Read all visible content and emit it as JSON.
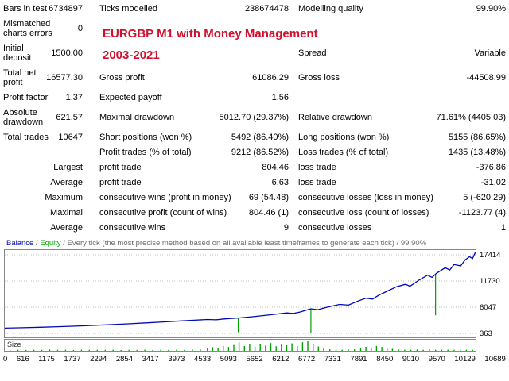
{
  "title": {
    "line1": "EURGBP M1 with Money Management",
    "line2": "2003-2021",
    "color": "#d1102e"
  },
  "stats": {
    "rows": [
      {
        "l1": "Bars in test",
        "v1": "6734897",
        "l2": "Ticks modelled",
        "v2": "238674478",
        "l3": "Modelling quality",
        "v3": "99.90%"
      },
      {
        "l1": "Mismatched charts errors",
        "v1": "0",
        "l2": "",
        "v2": "",
        "l3": "",
        "v3": ""
      },
      {
        "l1": "Initial deposit",
        "v1": "1500.00",
        "l2": "",
        "v2": "",
        "l3": "Spread",
        "v3": "Variable"
      },
      {
        "l1": "Total net profit",
        "v1": "16577.30",
        "l2": "Gross profit",
        "v2": "61086.29",
        "l3": "Gross loss",
        "v3": "-44508.99"
      },
      {
        "l1": "Profit factor",
        "v1": "1.37",
        "l2": "Expected payoff",
        "v2": "1.56",
        "l3": "",
        "v3": ""
      },
      {
        "l1": "Absolute drawdown",
        "v1": "621.57",
        "l2": "Maximal drawdown",
        "v2": "5012.70 (29.37%)",
        "l3": "Relative drawdown",
        "v3": "71.61% (4405.03)"
      },
      {
        "l1": "Total trades",
        "v1": "10647",
        "l2": "Short positions (won %)",
        "v2": "5492 (86.40%)",
        "l3": "Long positions (won %)",
        "v3": "5155 (86.65%)"
      },
      {
        "l1": "",
        "v1": "",
        "l2": "Profit trades (% of total)",
        "v2": "9212 (86.52%)",
        "l3": "Loss trades (% of total)",
        "v3": "1435 (13.48%)"
      },
      {
        "l1": "",
        "v1": "Largest",
        "l2": "profit trade",
        "v2": "804.46",
        "l3": "loss trade",
        "v3": "-376.86"
      },
      {
        "l1": "",
        "v1": "Average",
        "l2": "profit trade",
        "v2": "6.63",
        "l3": "loss trade",
        "v3": "-31.02"
      },
      {
        "l1": "",
        "v1": "Maximum",
        "l2": "consecutive wins (profit in money)",
        "v2": "69 (54.48)",
        "l3": "consecutive losses (loss in money)",
        "v3": "5 (-620.29)"
      },
      {
        "l1": "",
        "v1": "Maximal",
        "l2": "consecutive profit (count of wins)",
        "v2": "804.46 (1)",
        "l3": "consecutive loss (count of losses)",
        "v3": "-1123.77 (4)"
      },
      {
        "l1": "",
        "v1": "Average",
        "l2": "consecutive wins",
        "v2": "9",
        "l3": "consecutive losses",
        "v3": "1"
      }
    ]
  },
  "chart_data": {
    "type": "line",
    "title": "",
    "legend": {
      "balance_label": "Balance",
      "equity_label": "Equity",
      "separator": " / ",
      "description": "Every tick (the most precise method based on all available least timeframes to generate each tick) / 99.90%"
    },
    "xlim": [
      0,
      10689
    ],
    "ylim": [
      363,
      17414
    ],
    "x_ticks": [
      0,
      616,
      1175,
      1737,
      2294,
      2854,
      3417,
      3973,
      4533,
      5093,
      5652,
      6212,
      6772,
      7331,
      7891,
      8450,
      9010,
      9570,
      10129,
      10689
    ],
    "y_ticks": [
      17414,
      11730,
      6047,
      363
    ],
    "grid": "horizontal-dotted",
    "series": [
      {
        "name": "Balance",
        "color": "#0008b8",
        "points": [
          [
            0,
            1500
          ],
          [
            400,
            1590
          ],
          [
            800,
            1690
          ],
          [
            1200,
            1810
          ],
          [
            1600,
            1930
          ],
          [
            2000,
            2080
          ],
          [
            2400,
            2250
          ],
          [
            2800,
            2430
          ],
          [
            3200,
            2630
          ],
          [
            3600,
            2850
          ],
          [
            4000,
            3060
          ],
          [
            4300,
            3230
          ],
          [
            4600,
            3380
          ],
          [
            4800,
            3300
          ],
          [
            5000,
            3520
          ],
          [
            5300,
            3700
          ],
          [
            5600,
            3960
          ],
          [
            5900,
            4260
          ],
          [
            6200,
            4580
          ],
          [
            6400,
            4800
          ],
          [
            6550,
            4680
          ],
          [
            6700,
            5000
          ],
          [
            6950,
            5700
          ],
          [
            7100,
            5500
          ],
          [
            7300,
            6000
          ],
          [
            7600,
            6650
          ],
          [
            7800,
            6500
          ],
          [
            8000,
            7300
          ],
          [
            8200,
            8000
          ],
          [
            8350,
            7800
          ],
          [
            8500,
            8700
          ],
          [
            8700,
            9600
          ],
          [
            8900,
            10500
          ],
          [
            9100,
            11000
          ],
          [
            9200,
            10600
          ],
          [
            9400,
            11900
          ],
          [
            9600,
            13000
          ],
          [
            9700,
            12500
          ],
          [
            9800,
            13400
          ],
          [
            10000,
            14600
          ],
          [
            10100,
            14100
          ],
          [
            10200,
            15300
          ],
          [
            10350,
            15000
          ],
          [
            10450,
            16300
          ],
          [
            10550,
            17000
          ],
          [
            10620,
            16600
          ],
          [
            10689,
            18077
          ]
        ]
      },
      {
        "name": "Equity",
        "color": "#00a000",
        "spikes": [
          {
            "x": 5300,
            "from": 3700,
            "to": 600
          },
          {
            "x": 6950,
            "from": 5650,
            "to": 480
          },
          {
            "x": 9780,
            "from": 13100,
            "to": 4300
          }
        ]
      }
    ],
    "size_chart": {
      "label": "Size",
      "color": "#00a000",
      "bars": [
        [
          120,
          0.1
        ],
        [
          300,
          0.12
        ],
        [
          480,
          0.09
        ],
        [
          660,
          0.11
        ],
        [
          840,
          0.1
        ],
        [
          1020,
          0.13
        ],
        [
          1200,
          0.1
        ],
        [
          1380,
          0.11
        ],
        [
          1560,
          0.09
        ],
        [
          1740,
          0.12
        ],
        [
          1920,
          0.1
        ],
        [
          2100,
          0.11
        ],
        [
          2280,
          0.1
        ],
        [
          2460,
          0.12
        ],
        [
          2640,
          0.09
        ],
        [
          2820,
          0.11
        ],
        [
          3000,
          0.1
        ],
        [
          3180,
          0.12
        ],
        [
          3360,
          0.1
        ],
        [
          3540,
          0.11
        ],
        [
          3720,
          0.1
        ],
        [
          3900,
          0.12
        ],
        [
          4080,
          0.1
        ],
        [
          4260,
          0.13
        ],
        [
          4440,
          0.15
        ],
        [
          4600,
          0.25
        ],
        [
          4720,
          0.38
        ],
        [
          4840,
          0.3
        ],
        [
          4960,
          0.52
        ],
        [
          5080,
          0.4
        ],
        [
          5200,
          0.62
        ],
        [
          5320,
          0.88
        ],
        [
          5440,
          0.5
        ],
        [
          5560,
          0.68
        ],
        [
          5680,
          0.45
        ],
        [
          5800,
          0.75
        ],
        [
          5920,
          0.55
        ],
        [
          6040,
          0.82
        ],
        [
          6160,
          0.48
        ],
        [
          6280,
          0.65
        ],
        [
          6400,
          0.58
        ],
        [
          6520,
          0.78
        ],
        [
          6640,
          0.52
        ],
        [
          6760,
          0.9
        ],
        [
          6880,
          1.0
        ],
        [
          7000,
          0.7
        ],
        [
          7120,
          0.45
        ],
        [
          7240,
          0.28
        ],
        [
          7380,
          0.16
        ],
        [
          7520,
          0.12
        ],
        [
          7660,
          0.11
        ],
        [
          7800,
          0.13
        ],
        [
          7940,
          0.15
        ],
        [
          8080,
          0.28
        ],
        [
          8200,
          0.42
        ],
        [
          8320,
          0.35
        ],
        [
          8440,
          0.52
        ],
        [
          8560,
          0.4
        ],
        [
          8680,
          0.3
        ],
        [
          8800,
          0.22
        ],
        [
          8940,
          0.14
        ],
        [
          9080,
          0.12
        ],
        [
          9220,
          0.11
        ],
        [
          9360,
          0.13
        ],
        [
          9500,
          0.11
        ],
        [
          9640,
          0.14
        ],
        [
          9780,
          0.12
        ],
        [
          9920,
          0.11
        ],
        [
          10060,
          0.12
        ],
        [
          10200,
          0.1
        ],
        [
          10340,
          0.12
        ],
        [
          10480,
          0.11
        ],
        [
          10620,
          0.1
        ]
      ]
    }
  }
}
